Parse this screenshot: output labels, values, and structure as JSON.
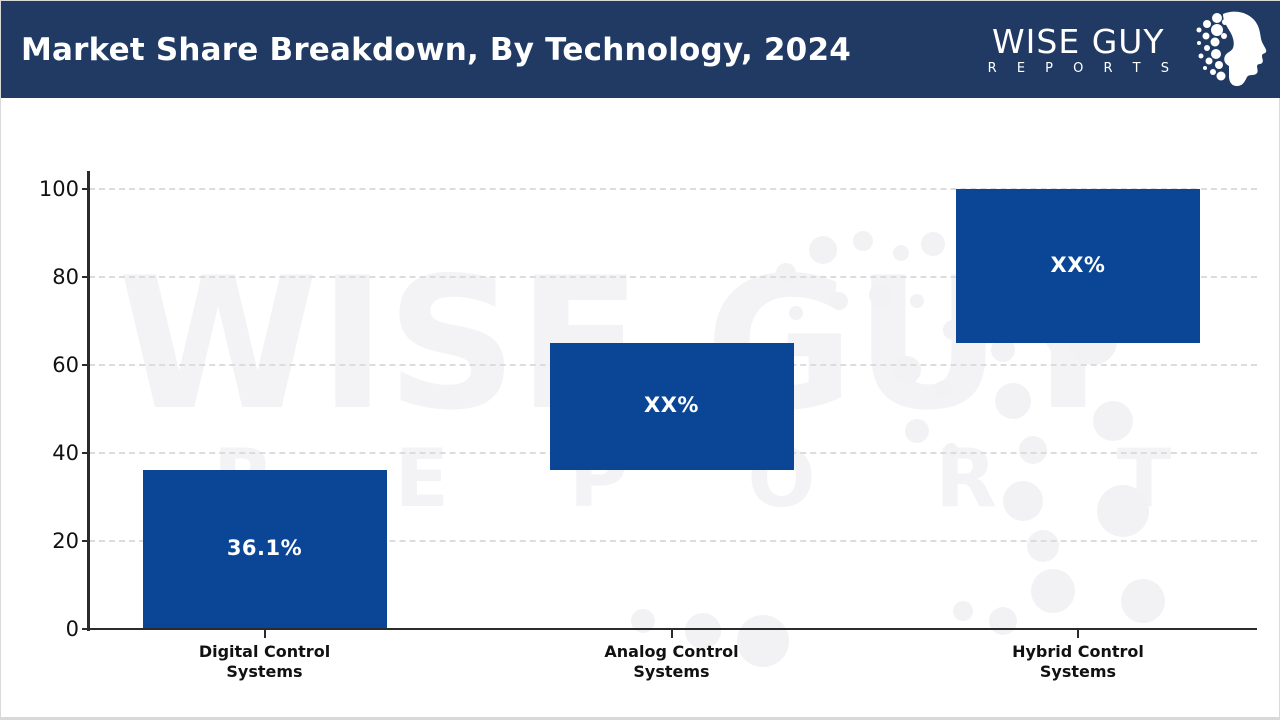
{
  "header": {
    "title": "Market Share Breakdown, By Technology, 2024",
    "logo": {
      "line1": "WISE GUY",
      "line2": "R E P O R T S"
    }
  },
  "watermark": {
    "line1": "WISE GUY",
    "line2": "R E P O R T S"
  },
  "chart_data": {
    "type": "bar",
    "variant": "floating-segment-waterfall",
    "title": "Market Share Breakdown, By Technology, 2024",
    "categories": [
      "Digital Control Systems",
      "Analog Control Systems",
      "Hybrid Control Systems"
    ],
    "segments": [
      {
        "category": "Digital Control Systems",
        "start": 0,
        "end": 36.1,
        "label": "36.1%"
      },
      {
        "category": "Analog Control Systems",
        "start": 36.1,
        "end": 65,
        "label": "XX%"
      },
      {
        "category": "Hybrid Control Systems",
        "start": 65,
        "end": 100,
        "label": "XX%"
      }
    ],
    "xlabel": "",
    "ylabel": "",
    "ylim": [
      0,
      100
    ],
    "yticks": [
      0,
      20,
      40,
      60,
      80,
      100
    ],
    "grid": "dashed-horizontal",
    "legend": "none"
  },
  "colors": {
    "header_bg": "#213a64",
    "bar": "#0b4596",
    "bar_label": "#ffffff",
    "axis": "#2b2b2b",
    "grid": "#dcdcdc",
    "watermark": "#f3f3f6",
    "page_bg": "#ffffff"
  }
}
